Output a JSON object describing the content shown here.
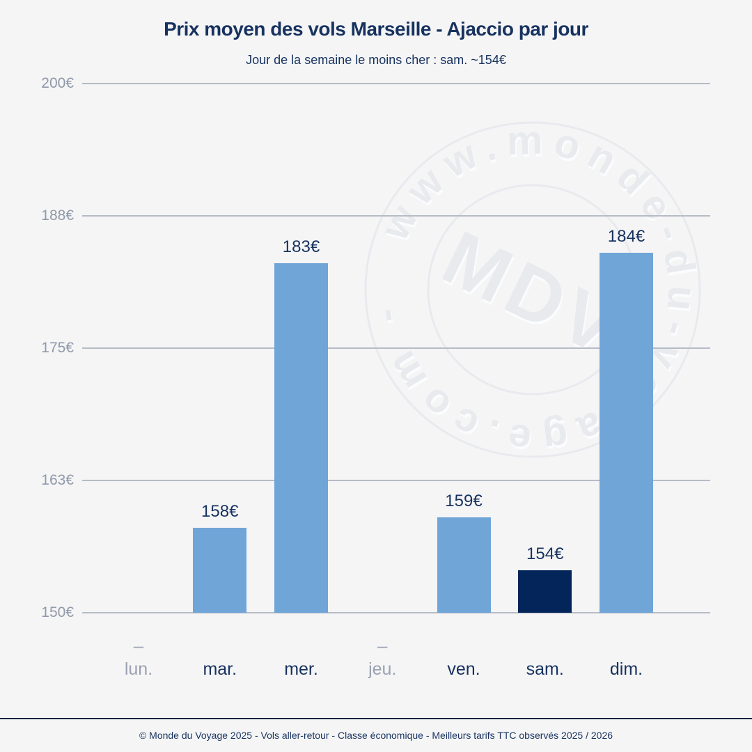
{
  "chart_data": {
    "type": "bar",
    "title": "Prix moyen des vols Marseille - Ajaccio par jour",
    "subtitle": "Jour de la semaine le moins cher : sam. ~154€",
    "categories": [
      "lun.",
      "mar.",
      "mer.",
      "jeu.",
      "ven.",
      "sam.",
      "dim."
    ],
    "values": [
      null,
      158,
      183,
      null,
      159,
      154,
      184
    ],
    "value_suffix": "€",
    "highlight_category": "sam.",
    "no_data_marker": "–",
    "ylim": [
      150,
      200
    ],
    "yticks": [
      {
        "value": 150,
        "label": "150€"
      },
      {
        "value": 162.5,
        "label": "163€"
      },
      {
        "value": 175,
        "label": "175€"
      },
      {
        "value": 187.5,
        "label": "188€"
      },
      {
        "value": 200,
        "label": "200€"
      }
    ],
    "grid": true,
    "legend": false
  },
  "watermark": {
    "ring_text": "www.monde-du-voyage.com - ",
    "center_text": "MDV"
  },
  "footer": {
    "text": "© Monde du Voyage 2025 - Vols aller-retour - Classe économique - Meilleurs tarifs TTC observés 2025 / 2026"
  },
  "colors": {
    "background": "#f5f5f6",
    "bar": "#70a5d8",
    "bar_highlight": "#03255a",
    "text_navy": "#17325f",
    "axis_inactive": "#9aa2b1",
    "ytick": "#9099a9",
    "gridline": "#b6bcc6",
    "footer_line": "#10243d",
    "watermark_main": "#e8eaee",
    "watermark_shadow": "#fbfcfd"
  }
}
